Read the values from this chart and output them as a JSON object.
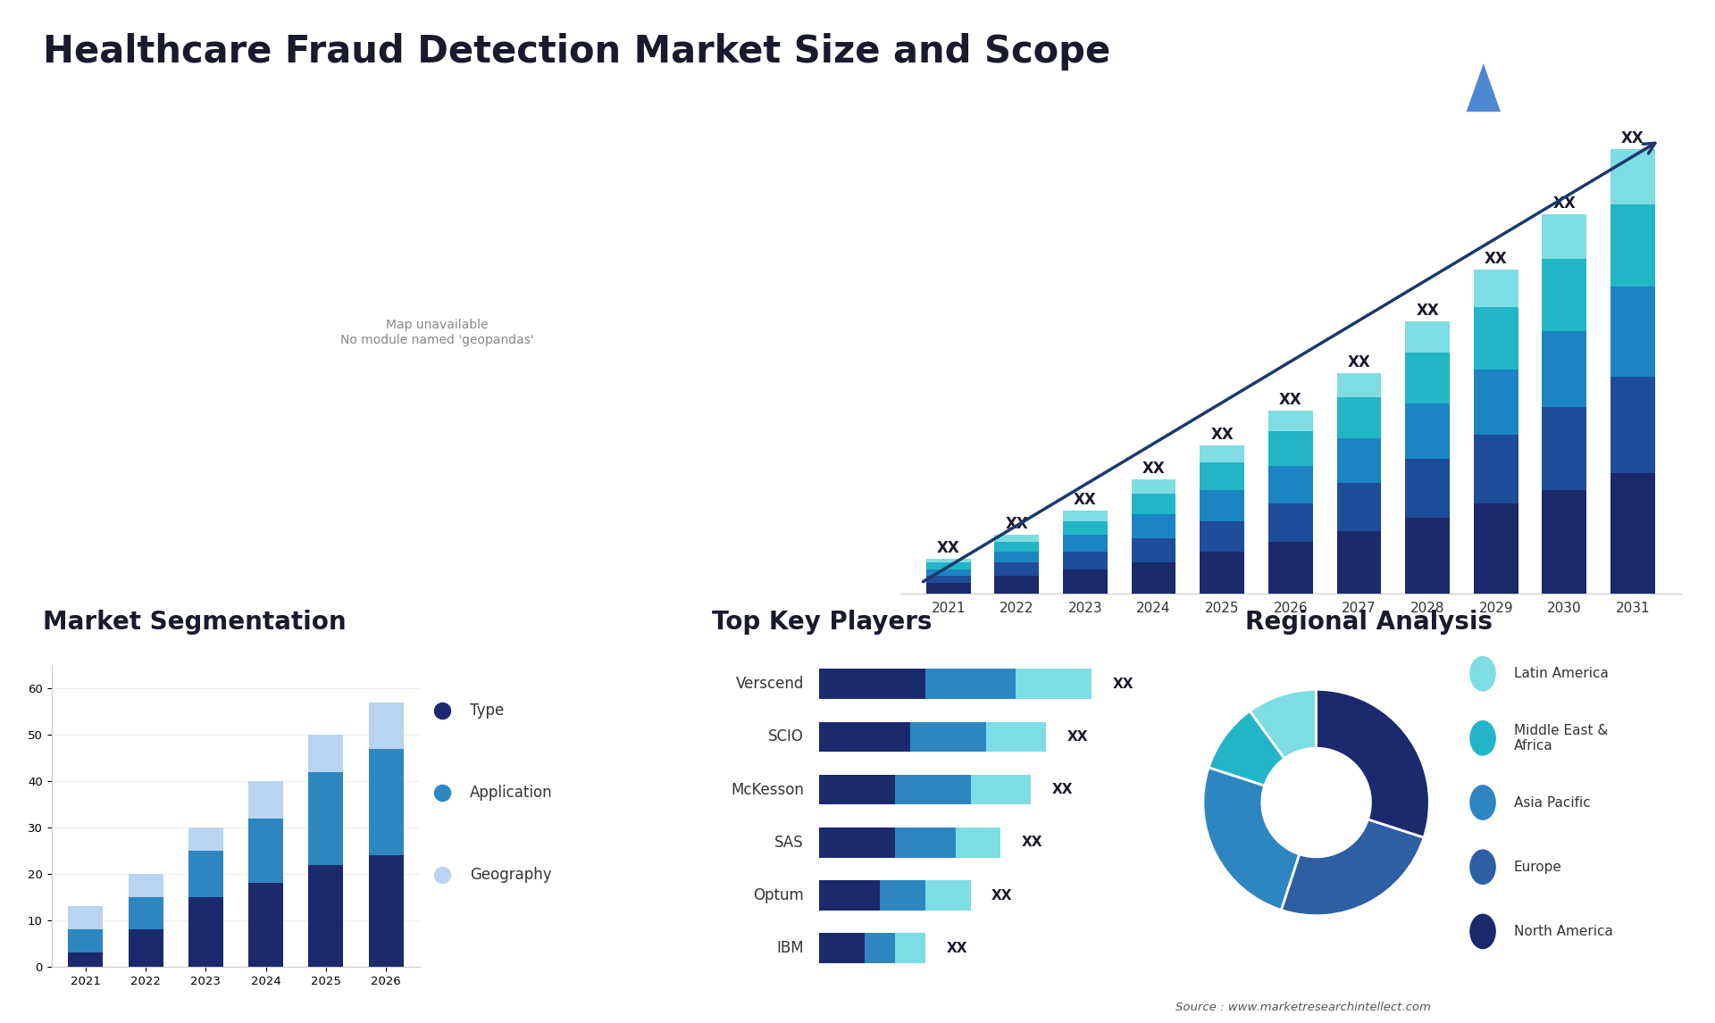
{
  "title": "Healthcare Fraud Detection Market Size and Scope",
  "background_color": "#ffffff",
  "title_fontsize": 30,
  "title_color": "#1a1a2e",
  "bar_years": [
    2021,
    2022,
    2023,
    2024,
    2025,
    2026,
    2027,
    2028,
    2029,
    2030,
    2031
  ],
  "bar_v1": [
    3,
    5,
    7,
    9,
    12,
    15,
    18,
    22,
    26,
    30,
    35
  ],
  "bar_v2": [
    2,
    4,
    5,
    7,
    9,
    11,
    14,
    17,
    20,
    24,
    28
  ],
  "bar_v3": [
    2,
    3,
    5,
    7,
    9,
    11,
    13,
    16,
    19,
    22,
    26
  ],
  "bar_v4": [
    2,
    3,
    4,
    6,
    8,
    10,
    12,
    15,
    18,
    21,
    24
  ],
  "bar_v5": [
    1,
    2,
    3,
    4,
    5,
    6,
    7,
    9,
    11,
    13,
    16
  ],
  "bar_color_1": "#1a2a6c",
  "bar_color_2": "#1e4d9a",
  "bar_color_3": "#1a85c2",
  "bar_color_4": "#22b5c5",
  "bar_color_5": "#7edce4",
  "arrow_color": "#1a3a6c",
  "seg_years": [
    "2021",
    "2022",
    "2023",
    "2024",
    "2025",
    "2026"
  ],
  "seg_type": [
    3,
    8,
    15,
    18,
    22,
    24
  ],
  "seg_app": [
    5,
    7,
    10,
    14,
    20,
    23
  ],
  "seg_geo": [
    5,
    5,
    5,
    8,
    8,
    10
  ],
  "seg_color_type": "#1a2a6c",
  "seg_color_app": "#2e86c1",
  "seg_color_geo": "#b8d4f0",
  "players": [
    "Verscend",
    "SCIO",
    "McKesson",
    "SAS",
    "Optum",
    "IBM"
  ],
  "player_vals_1": [
    7,
    6,
    5,
    5,
    4,
    3
  ],
  "player_vals_2": [
    6,
    5,
    5,
    4,
    3,
    2
  ],
  "player_vals_3": [
    5,
    4,
    4,
    3,
    3,
    2
  ],
  "player_color_1": "#1a2a6c",
  "player_color_2": "#2e86c1",
  "player_color_3": "#7edce4",
  "donut_sizes": [
    10,
    10,
    25,
    25,
    30
  ],
  "donut_colors": [
    "#7edce4",
    "#22b5c5",
    "#2e86c1",
    "#2e5fa3",
    "#1a2a6c"
  ],
  "donut_labels": [
    "Latin America",
    "Middle East &\nAfrica",
    "Asia Pacific",
    "Europe",
    "North America"
  ],
  "source_text": "Source : www.marketresearchintellect.com",
  "highlighted_countries": {
    "United States of America": "#2e5fa3",
    "Canada": "#2e5fa3",
    "Mexico": "#6baed6",
    "Brazil": "#6baed6",
    "Argentina": "#b8d4f0",
    "United Kingdom": "#1a2a6c",
    "France": "#1a2a6c",
    "Spain": "#2e5fa3",
    "Germany": "#2e5fa3",
    "Italy": "#2e5fa3",
    "Saudi Arabia": "#1a2a6c",
    "South Africa": "#2e5fa3",
    "China": "#6baed6",
    "Japan": "#2e5fa3",
    "India": "#2e86c1"
  },
  "map_default_color": "#d0d0da",
  "map_edge_color": "#ffffff"
}
